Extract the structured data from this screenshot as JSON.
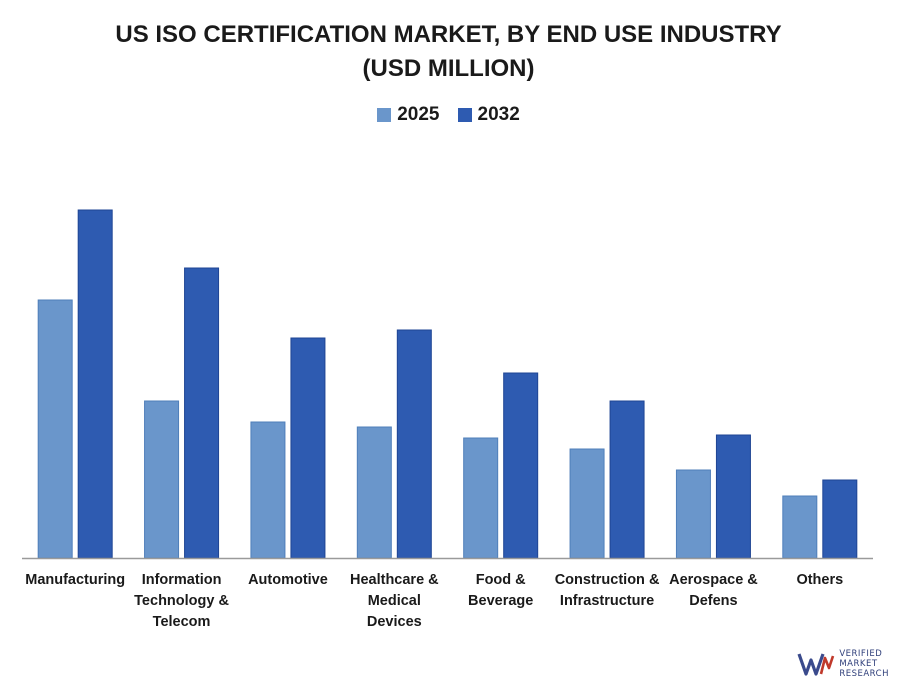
{
  "chart_data": {
    "type": "bar",
    "title_line1": "US ISO CERTIFICATION MARKET, BY END USE INDUSTRY",
    "title_line2": "(USD MILLION)",
    "categories": [
      [
        "Manufacturing"
      ],
      [
        "Information",
        "Technology &",
        "Telecom"
      ],
      [
        "Automotive"
      ],
      [
        "Healthcare &",
        "Medical",
        "Devices"
      ],
      [
        "Food &",
        "Beverage"
      ],
      [
        "Construction &",
        "Infrastructure"
      ],
      [
        "Aerospace &",
        "Defens"
      ],
      [
        "Others"
      ]
    ],
    "series": [
      {
        "name": "2025",
        "color": "#6a96cb",
        "values": [
          258,
          157,
          136,
          131,
          120,
          109,
          88,
          62
        ]
      },
      {
        "name": "2032",
        "color": "#2e5bb1",
        "values": [
          348,
          290,
          220,
          228,
          185,
          157,
          123,
          78
        ]
      }
    ],
    "xlabel": "",
    "ylabel": "",
    "ylim": [
      0,
      350
    ],
    "grid": false,
    "legend": "top-center"
  },
  "brand": {
    "line1": "VERIFIED",
    "line2": "MARKET",
    "line3": "RESEARCH"
  }
}
